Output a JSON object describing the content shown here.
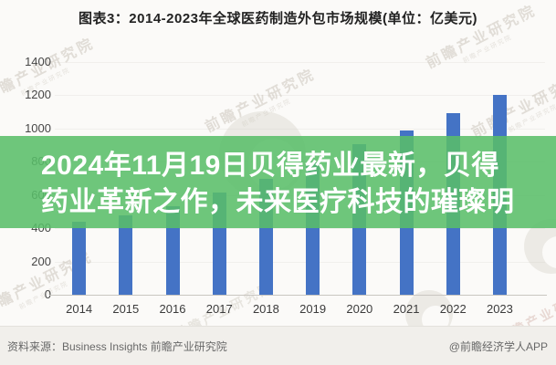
{
  "page": {
    "background": "#fbfaf8"
  },
  "header": {
    "title": "图表3：2014-2023年全球医药制造外包市场规模(单位：亿美元)"
  },
  "overlay": {
    "line1": "2024年11月19日贝得药业最新，贝得",
    "line2": "药业革新之作，未来医疗科技的璀璨明",
    "banner_color": "#58be69",
    "text_color": "#ffffff"
  },
  "watermark": {
    "brand": "前瞻产业研究院",
    "brand_sub": "前瞻产业研究院"
  },
  "footer": {
    "source": "资料来源：Business Insights 前瞻产业研究院",
    "credit": "@前瞻经济学人APP"
  },
  "chart_data": {
    "type": "bar",
    "title": "图表3：2014-2023年全球医药制造外包市场规模(单位：亿美元)",
    "unit": "亿美元",
    "categories": [
      "2014",
      "2015",
      "2016",
      "2017",
      "2018",
      "2019",
      "2020",
      "2021",
      "2022",
      "2023"
    ],
    "values": [
      440,
      475,
      535,
      615,
      700,
      795,
      905,
      990,
      1090,
      1200
    ],
    "values_estimated": true,
    "xlabel": "",
    "ylabel": "",
    "ylim": [
      0,
      1400
    ],
    "yticks": [
      0,
      200,
      400,
      600,
      800,
      1000,
      1200,
      1400
    ],
    "bar_color": "#4473c5",
    "grid": "faint-horizontal",
    "legend": "none"
  }
}
